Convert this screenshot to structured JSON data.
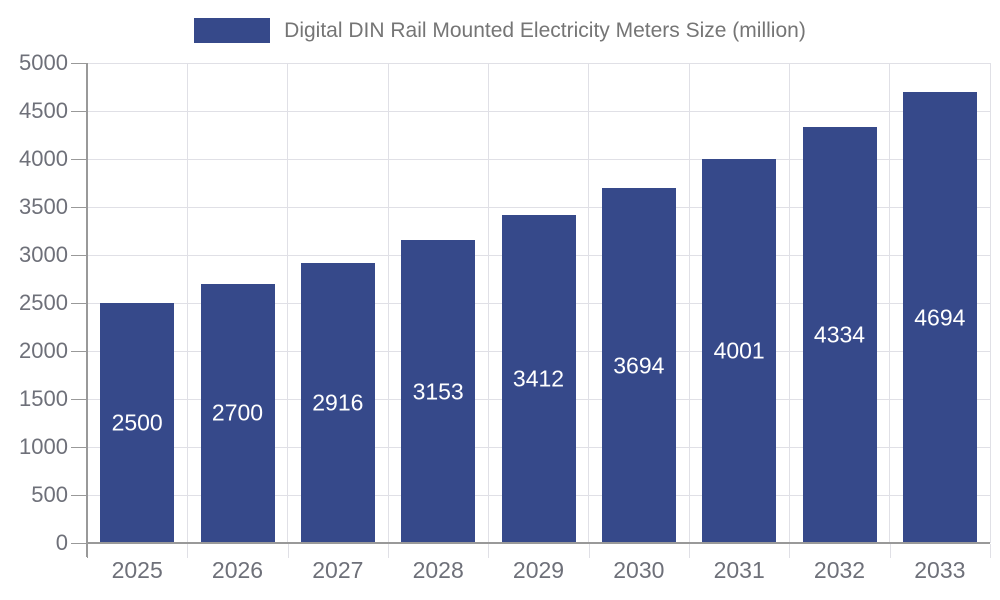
{
  "legend": {
    "label": "Digital DIN Rail Mounted Electricity Meters Size (million)"
  },
  "colors": {
    "bar": "#36498A",
    "axis_line": "#999999",
    "grid_line": "#E0E0E6",
    "axis_text": "#6E7079",
    "legend_text": "#757575",
    "value_text": "#FFFFFF"
  },
  "chart_data": {
    "type": "bar",
    "title": "Digital DIN Rail Mounted Electricity Meters Size (million)",
    "categories": [
      "2025",
      "2026",
      "2027",
      "2028",
      "2029",
      "2030",
      "2031",
      "2032",
      "2033"
    ],
    "series": [
      {
        "name": "Digital DIN Rail Mounted Electricity Meters Size (million)",
        "values": [
          2500,
          2700,
          2916,
          3153,
          3412,
          3694,
          4001,
          4334,
          4694
        ]
      }
    ],
    "xlabel": "",
    "ylabel": "",
    "ylim": [
      0,
      5000
    ],
    "ytick_step": 500,
    "grid": true,
    "legend_position": "top",
    "value_label_position": "inside-center"
  }
}
